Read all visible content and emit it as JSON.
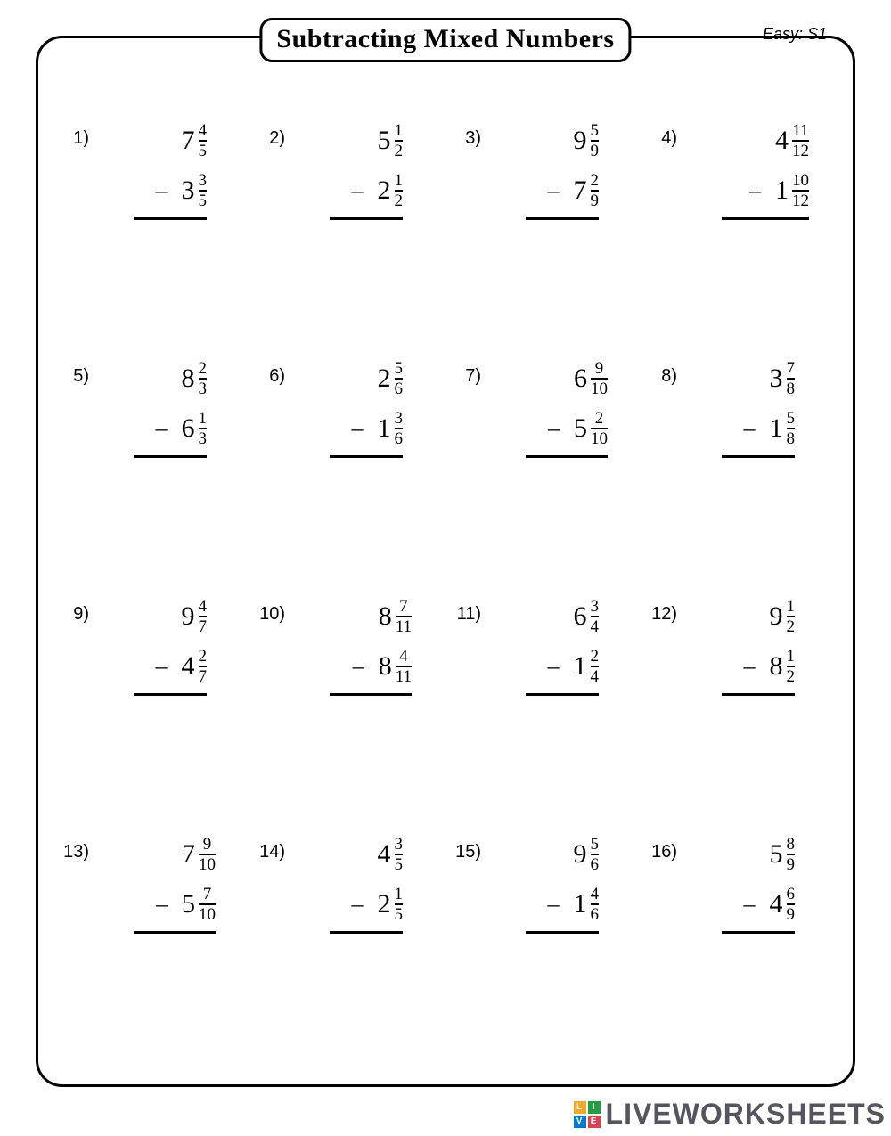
{
  "title": "Subtracting Mixed Numbers",
  "level_label": "Easy: S1",
  "watermark": {
    "text": "LIVEWORKSHEETS",
    "logo_letters": [
      "L",
      "I",
      "V",
      "E"
    ],
    "logo_colors": [
      "#f5a623",
      "#20a040",
      "#0078d4",
      "#e04050"
    ]
  },
  "colors": {
    "border": "#000000",
    "text": "#000000",
    "background": "#ffffff"
  },
  "fonts": {
    "title_size": 30,
    "number_size": 30,
    "fraction_size": 19,
    "label_size": 20
  },
  "problems": [
    {
      "n": "1)",
      "top": {
        "w": "7",
        "num": "4",
        "den": "5"
      },
      "bot": {
        "w": "3",
        "num": "3",
        "den": "5"
      },
      "rule_w": 82
    },
    {
      "n": "2)",
      "top": {
        "w": "5",
        "num": "1",
        "den": "2"
      },
      "bot": {
        "w": "2",
        "num": "1",
        "den": "2"
      },
      "rule_w": 82
    },
    {
      "n": "3)",
      "top": {
        "w": "9",
        "num": "5",
        "den": "9"
      },
      "bot": {
        "w": "7",
        "num": "2",
        "den": "9"
      },
      "rule_w": 82
    },
    {
      "n": "4)",
      "top": {
        "w": "4",
        "num": "11",
        "den": "12"
      },
      "bot": {
        "w": "1",
        "num": "10",
        "den": "12"
      },
      "rule_w": 98
    },
    {
      "n": "5)",
      "top": {
        "w": "8",
        "num": "2",
        "den": "3"
      },
      "bot": {
        "w": "6",
        "num": "1",
        "den": "3"
      },
      "rule_w": 82
    },
    {
      "n": "6)",
      "top": {
        "w": "2",
        "num": "5",
        "den": "6"
      },
      "bot": {
        "w": "1",
        "num": "3",
        "den": "6"
      },
      "rule_w": 82
    },
    {
      "n": "7)",
      "top": {
        "w": "6",
        "num": "9",
        "den": "10"
      },
      "bot": {
        "w": "5",
        "num": "2",
        "den": "10"
      },
      "rule_w": 92
    },
    {
      "n": "8)",
      "top": {
        "w": "3",
        "num": "7",
        "den": "8"
      },
      "bot": {
        "w": "1",
        "num": "5",
        "den": "8"
      },
      "rule_w": 82
    },
    {
      "n": "9)",
      "top": {
        "w": "9",
        "num": "4",
        "den": "7"
      },
      "bot": {
        "w": "4",
        "num": "2",
        "den": "7"
      },
      "rule_w": 82
    },
    {
      "n": "10)",
      "top": {
        "w": "8",
        "num": "7",
        "den": "11"
      },
      "bot": {
        "w": "8",
        "num": "4",
        "den": "11"
      },
      "rule_w": 92
    },
    {
      "n": "11)",
      "top": {
        "w": "6",
        "num": "3",
        "den": "4"
      },
      "bot": {
        "w": "1",
        "num": "2",
        "den": "4"
      },
      "rule_w": 82
    },
    {
      "n": "12)",
      "top": {
        "w": "9",
        "num": "1",
        "den": "2"
      },
      "bot": {
        "w": "8",
        "num": "1",
        "den": "2"
      },
      "rule_w": 82
    },
    {
      "n": "13)",
      "top": {
        "w": "7",
        "num": "9",
        "den": "10"
      },
      "bot": {
        "w": "5",
        "num": "7",
        "den": "10"
      },
      "rule_w": 92
    },
    {
      "n": "14)",
      "top": {
        "w": "4",
        "num": "3",
        "den": "5"
      },
      "bot": {
        "w": "2",
        "num": "1",
        "den": "5"
      },
      "rule_w": 82
    },
    {
      "n": "15)",
      "top": {
        "w": "9",
        "num": "5",
        "den": "6"
      },
      "bot": {
        "w": "1",
        "num": "4",
        "den": "6"
      },
      "rule_w": 82
    },
    {
      "n": "16)",
      "top": {
        "w": "5",
        "num": "8",
        "den": "9"
      },
      "bot": {
        "w": "4",
        "num": "6",
        "den": "9"
      },
      "rule_w": 82
    }
  ]
}
